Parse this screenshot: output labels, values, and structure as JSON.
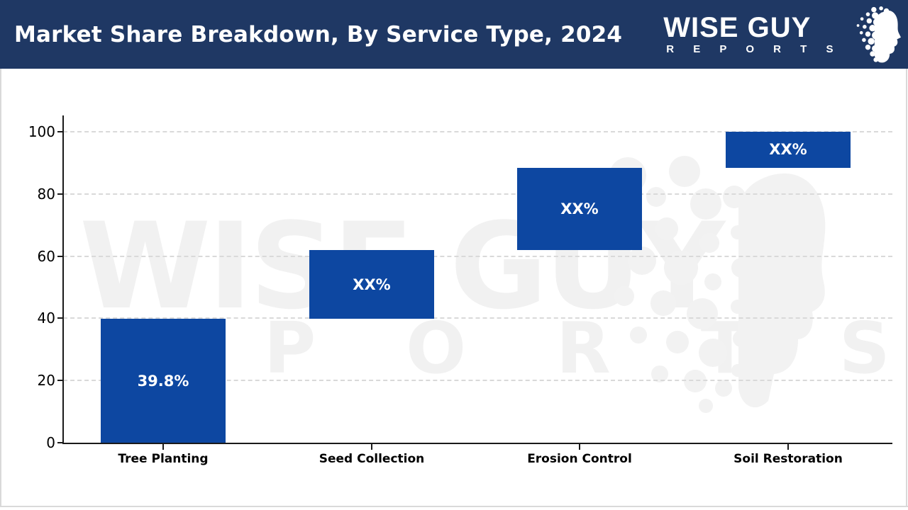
{
  "header": {
    "title": "Market Share Breakdown, By Service Type, 2024",
    "logo_primary": "WISE GUY",
    "logo_secondary": "R E P O R T S"
  },
  "watermark": {
    "line1": "WISE GUY",
    "line2": "P O R T S"
  },
  "chart_data": {
    "type": "bar",
    "variant": "waterfall",
    "title": "Market Share Breakdown, By Service Type, 2024",
    "xlabel": "",
    "ylabel": "",
    "categories": [
      "Tree Planting",
      "Seed Collection",
      "Erosion Control",
      "Soil Restoration"
    ],
    "segments": [
      {
        "category": "Tree Planting",
        "start": 0,
        "end": 39.8,
        "label": "39.8%"
      },
      {
        "category": "Seed Collection",
        "start": 39.8,
        "end": 62.0,
        "label": "XX%"
      },
      {
        "category": "Erosion Control",
        "start": 62.0,
        "end": 88.4,
        "label": "XX%"
      },
      {
        "category": "Soil Restoration",
        "start": 88.4,
        "end": 100.0,
        "label": "XX%"
      }
    ],
    "y_ticks": [
      0,
      20,
      40,
      60,
      80,
      100
    ],
    "ylim": [
      0,
      105
    ],
    "grid": "horizontal-dashed",
    "legend": "none",
    "colors": {
      "bar": "#0d47a1",
      "bar_label": "#ffffff",
      "grid": "#d9d9d9",
      "axis": "#1a1a1a",
      "header_bg": "#1f3864",
      "watermark": "#f1f1f1"
    }
  }
}
